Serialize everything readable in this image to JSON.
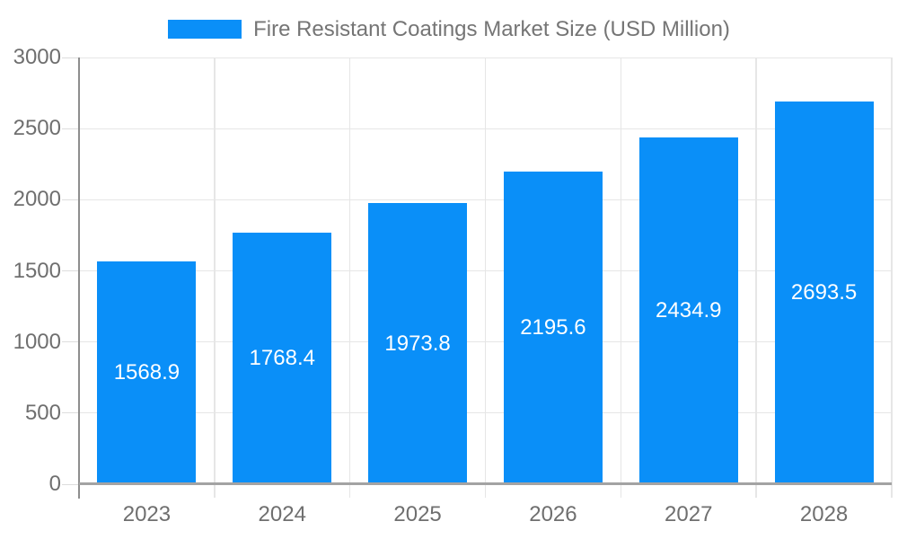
{
  "legend": {
    "label": "Fire Resistant Coatings Market Size (USD Million)"
  },
  "chart_data": {
    "type": "bar",
    "title": "Fire Resistant Coatings Market Size (USD Million)",
    "series_name": "Fire Resistant Coatings Market Size (USD Million)",
    "categories": [
      "2023",
      "2024",
      "2025",
      "2026",
      "2027",
      "2028"
    ],
    "values": [
      1568.9,
      1768.4,
      1973.8,
      2195.6,
      2434.9,
      2693.5
    ],
    "value_labels": [
      "1568.9",
      "1768.4",
      "1973.8",
      "2195.6",
      "2434.9",
      "2693.5"
    ],
    "xlabel": "",
    "ylabel": "",
    "ylim": [
      0,
      3000
    ],
    "yticks": [
      0,
      500,
      1000,
      1500,
      2000,
      2500,
      3000
    ],
    "grid": true,
    "legend_position": "top",
    "colors": {
      "bar": "#0A8FF8",
      "value_label": "#ffffff",
      "axis_text": "#6f6f6f",
      "title_text": "#757575",
      "gridline": "#e6e6e6",
      "tick": "#dddddd",
      "axis_line": "#8e8e8e",
      "baseline": "#a3a3a3",
      "background": "#ffffff"
    }
  }
}
